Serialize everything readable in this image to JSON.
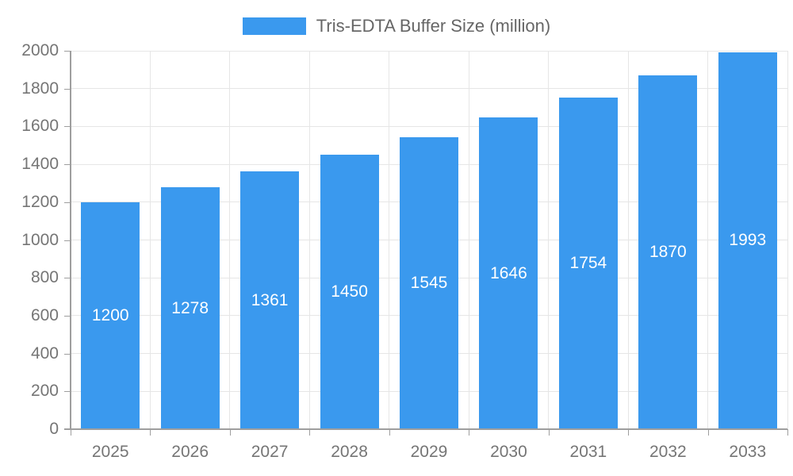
{
  "chart_data": {
    "type": "bar",
    "title": "",
    "legend": "Tris-EDTA Buffer Size (million)",
    "legend_position": "top-center",
    "categories": [
      "2025",
      "2026",
      "2027",
      "2028",
      "2029",
      "2030",
      "2031",
      "2032",
      "2033"
    ],
    "values": [
      1200,
      1278,
      1361,
      1450,
      1545,
      1646,
      1754,
      1870,
      1993
    ],
    "xlabel": "",
    "ylabel": "",
    "ylim": [
      0,
      2000
    ],
    "yticks": [
      0,
      200,
      400,
      600,
      800,
      1000,
      1200,
      1400,
      1600,
      1800,
      2000
    ],
    "grid": true,
    "bar_color": "#3A99EE",
    "bar_label_color": "#ffffff",
    "axis_text_color": "#757575",
    "legend_text_color": "#666666",
    "grid_color": "#e6e6e6",
    "axis_line_color": "#9e9e9e"
  }
}
